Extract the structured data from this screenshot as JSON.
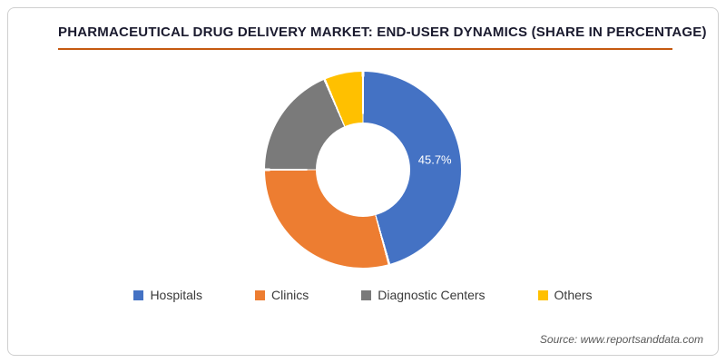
{
  "title": "PHARMACEUTICAL DRUG DELIVERY MARKET: END-USER DYNAMICS (SHARE IN PERCENTAGE)",
  "source_text": "Source: www.reportsanddata.com",
  "colors": {
    "title_text": "#1A1A2E",
    "title_underline": "#C55A11",
    "card_border": "#CFCFCF",
    "legend_text": "#3A3A3A",
    "source_text": "#595959",
    "slice_label_text": "#FFFFFF",
    "background": "#FFFFFF"
  },
  "chart_data": {
    "type": "pie",
    "subtype": "donut",
    "title": "PHARMACEUTICAL DRUG DELIVERY MARKET: END-USER DYNAMICS (SHARE IN PERCENTAGE)",
    "categories": [
      "Hospitals",
      "Clinics",
      "Diagnostic Centers",
      "Others"
    ],
    "values": [
      45.7,
      29.3,
      18.6,
      6.4
    ],
    "colors": [
      "#4472C4",
      "#ED7D31",
      "#7A7A7A",
      "#FFC000"
    ],
    "data_labels": [
      "45.7%",
      "",
      "",
      ""
    ],
    "start_angle_deg": 0,
    "direction": "clockwise",
    "legend_position": "bottom",
    "donut_hole_ratio": 0.48
  }
}
